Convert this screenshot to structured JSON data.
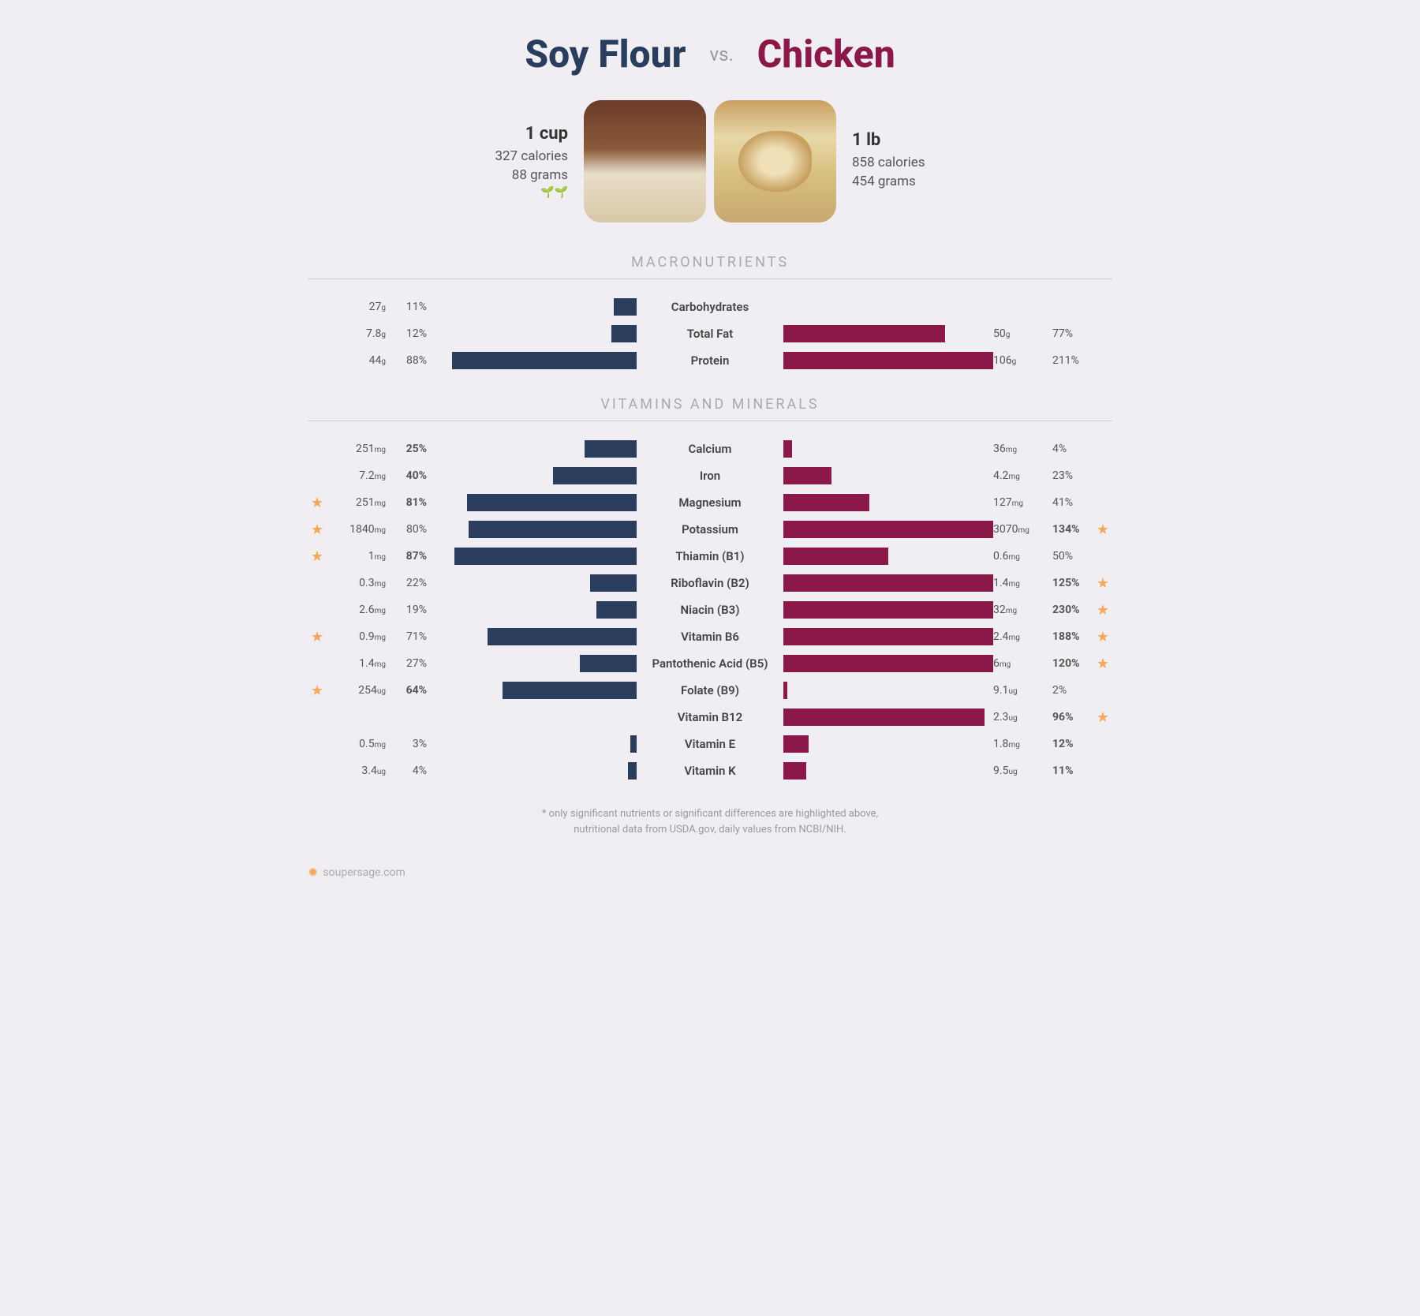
{
  "colors": {
    "left": "#2a3d5c",
    "right": "#8a1849",
    "star": "#f5a85c",
    "background": "#f0eef2"
  },
  "titles": {
    "left": "Soy Flour",
    "vs": "vs.",
    "right": "Chicken"
  },
  "foods": {
    "left": {
      "serving": "1 cup",
      "calories": "327 calories",
      "grams": "88 grams",
      "plant_icons": "🌱🌱"
    },
    "right": {
      "serving": "1 lb",
      "calories": "858 calories",
      "grams": "454 grams",
      "plant_icons": ""
    }
  },
  "sections": {
    "macros": "MACRONUTRIENTS",
    "vitamins": "VITAMINS AND MINERALS"
  },
  "bar_max_pct": 100,
  "macros": [
    {
      "label": "Carbohydrates",
      "left_amt": "27",
      "left_unit": "g",
      "left_pct": 11,
      "left_bold": false,
      "left_star": false,
      "right_amt": "",
      "right_unit": "",
      "right_pct": 0,
      "right_bold": false,
      "right_star": false,
      "right_show": false
    },
    {
      "label": "Total Fat",
      "left_amt": "7.8",
      "left_unit": "g",
      "left_pct": 12,
      "left_bold": false,
      "left_star": false,
      "right_amt": "50",
      "right_unit": "g",
      "right_pct": 77,
      "right_bold": false,
      "right_star": false,
      "right_show": true
    },
    {
      "label": "Protein",
      "left_amt": "44",
      "left_unit": "g",
      "left_pct": 88,
      "left_bold": false,
      "left_star": false,
      "right_amt": "106",
      "right_unit": "g",
      "right_pct": 211,
      "right_bold": false,
      "right_star": false,
      "right_show": true
    }
  ],
  "vitamins": [
    {
      "label": "Calcium",
      "left_amt": "251",
      "left_unit": "mg",
      "left_pct": 25,
      "left_bold": true,
      "left_star": false,
      "right_amt": "36",
      "right_unit": "mg",
      "right_pct": 4,
      "right_bold": false,
      "right_star": false,
      "right_show": true
    },
    {
      "label": "Iron",
      "left_amt": "7.2",
      "left_unit": "mg",
      "left_pct": 40,
      "left_bold": true,
      "left_star": false,
      "right_amt": "4.2",
      "right_unit": "mg",
      "right_pct": 23,
      "right_bold": false,
      "right_star": false,
      "right_show": true
    },
    {
      "label": "Magnesium",
      "left_amt": "251",
      "left_unit": "mg",
      "left_pct": 81,
      "left_bold": true,
      "left_star": true,
      "right_amt": "127",
      "right_unit": "mg",
      "right_pct": 41,
      "right_bold": false,
      "right_star": false,
      "right_show": true
    },
    {
      "label": "Potassium",
      "left_amt": "1840",
      "left_unit": "mg",
      "left_pct": 80,
      "left_bold": false,
      "left_star": true,
      "right_amt": "3070",
      "right_unit": "mg",
      "right_pct": 134,
      "right_bold": true,
      "right_star": true,
      "right_show": true
    },
    {
      "label": "Thiamin (B1)",
      "left_amt": "1",
      "left_unit": "mg",
      "left_pct": 87,
      "left_bold": true,
      "left_star": true,
      "right_amt": "0.6",
      "right_unit": "mg",
      "right_pct": 50,
      "right_bold": false,
      "right_star": false,
      "right_show": true
    },
    {
      "label": "Riboflavin (B2)",
      "left_amt": "0.3",
      "left_unit": "mg",
      "left_pct": 22,
      "left_bold": false,
      "left_star": false,
      "right_amt": "1.4",
      "right_unit": "mg",
      "right_pct": 125,
      "right_bold": true,
      "right_star": true,
      "right_show": true
    },
    {
      "label": "Niacin (B3)",
      "left_amt": "2.6",
      "left_unit": "mg",
      "left_pct": 19,
      "left_bold": false,
      "left_star": false,
      "right_amt": "32",
      "right_unit": "mg",
      "right_pct": 230,
      "right_bold": true,
      "right_star": true,
      "right_show": true
    },
    {
      "label": "Vitamin B6",
      "left_amt": "0.9",
      "left_unit": "mg",
      "left_pct": 71,
      "left_bold": false,
      "left_star": true,
      "right_amt": "2.4",
      "right_unit": "mg",
      "right_pct": 188,
      "right_bold": true,
      "right_star": true,
      "right_show": true
    },
    {
      "label": "Pantothenic Acid (B5)",
      "left_amt": "1.4",
      "left_unit": "mg",
      "left_pct": 27,
      "left_bold": false,
      "left_star": false,
      "right_amt": "6",
      "right_unit": "mg",
      "right_pct": 120,
      "right_bold": true,
      "right_star": true,
      "right_show": true
    },
    {
      "label": "Folate (B9)",
      "left_amt": "254",
      "left_unit": "ug",
      "left_pct": 64,
      "left_bold": true,
      "left_star": true,
      "right_amt": "9.1",
      "right_unit": "ug",
      "right_pct": 2,
      "right_bold": false,
      "right_star": false,
      "right_show": true
    },
    {
      "label": "Vitamin B12",
      "left_amt": "",
      "left_unit": "",
      "left_pct": 0,
      "left_bold": false,
      "left_star": false,
      "left_show": false,
      "right_amt": "2.3",
      "right_unit": "ug",
      "right_pct": 96,
      "right_bold": true,
      "right_star": true,
      "right_show": true
    },
    {
      "label": "Vitamin E",
      "left_amt": "0.5",
      "left_unit": "mg",
      "left_pct": 3,
      "left_bold": false,
      "left_star": false,
      "right_amt": "1.8",
      "right_unit": "mg",
      "right_pct": 12,
      "right_bold": true,
      "right_star": false,
      "right_show": true
    },
    {
      "label": "Vitamin K",
      "left_amt": "3.4",
      "left_unit": "ug",
      "left_pct": 4,
      "left_bold": false,
      "left_star": false,
      "right_amt": "9.5",
      "right_unit": "ug",
      "right_pct": 11,
      "right_bold": true,
      "right_star": false,
      "right_show": true
    }
  ],
  "footnote_line1": "* only significant nutrients or significant differences are highlighted above,",
  "footnote_line2": "nutritional data from USDA.gov, daily values from NCBI/NIH.",
  "footer": "soupersage.com"
}
